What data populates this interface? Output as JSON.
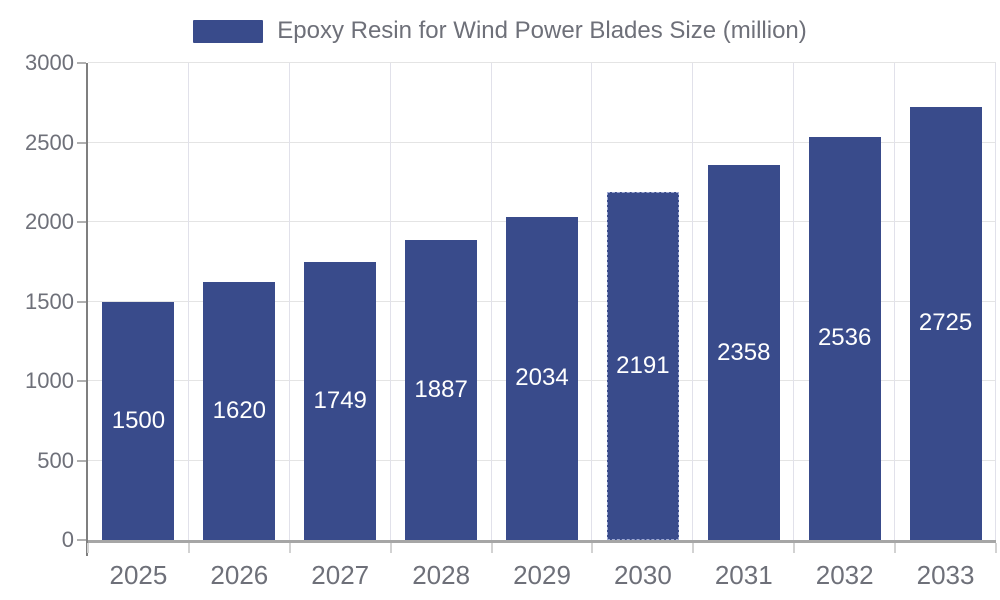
{
  "legend": {
    "label": "Epoxy Resin for Wind Power Blades Size (million)"
  },
  "chart_data": {
    "type": "bar",
    "title": "Epoxy Resin for Wind Power Blades Size (million)",
    "series_name": "Epoxy Resin for Wind Power Blades Size (million)",
    "categories": [
      "2025",
      "2026",
      "2027",
      "2028",
      "2029",
      "2030",
      "2031",
      "2032",
      "2033"
    ],
    "values": [
      1500,
      1620,
      1749,
      1887,
      2034,
      2191,
      2358,
      2536,
      2725
    ],
    "xlabel": "",
    "ylabel": "",
    "ylim": [
      0,
      3000
    ],
    "y_ticks": [
      0,
      500,
      1000,
      1500,
      2000,
      2500,
      3000
    ],
    "grid": true,
    "legend_position": "top-center",
    "bar_labels_position": "inside-center",
    "highlight_category": "2030"
  },
  "colors": {
    "bar": "#394B8B",
    "bar_label": "#FFFFFF",
    "axis_text": "#6E7079",
    "grid_h": "#E4E4E4",
    "grid_v": "#E1E1EA",
    "x_axis_line": "#A6A6A6",
    "y_axis_line": "#7F7F7F",
    "y_tick": "#B0B0B0",
    "x_tick": "#D2D2D2",
    "background": "#FFFFFF"
  }
}
